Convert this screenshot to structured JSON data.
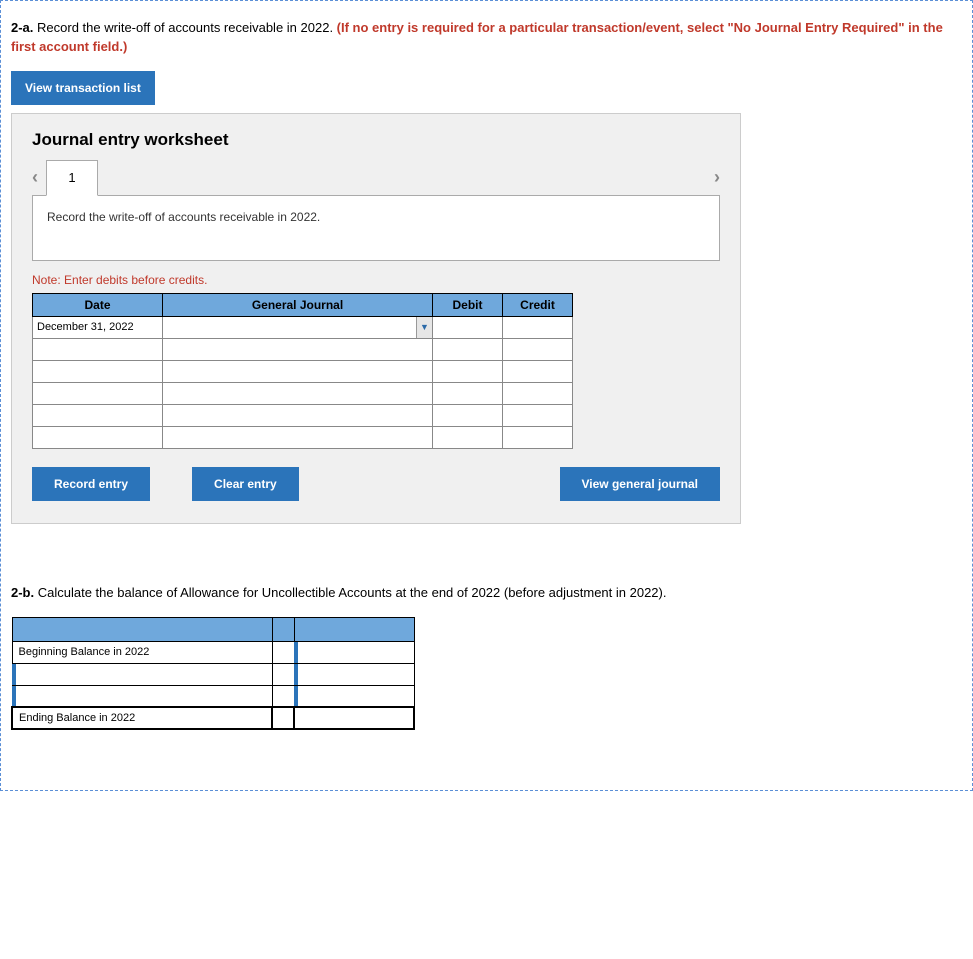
{
  "q2a": {
    "prefix": "2-a.",
    "black": " Record the write-off of accounts receivable in 2022. ",
    "red": "(If no entry is required for a particular transaction/event, select \"No Journal Entry Required\" in the first account field.)"
  },
  "buttons": {
    "view_tx_list": "View transaction list",
    "record_entry": "Record entry",
    "clear_entry": "Clear entry",
    "view_gj": "View general journal"
  },
  "worksheet": {
    "title": "Journal entry worksheet",
    "tab_label": "1",
    "prompt": "Record the write-off of accounts receivable in 2022.",
    "note": "Note: Enter debits before credits.",
    "headers": {
      "date": "Date",
      "gj": "General Journal",
      "debit": "Debit",
      "credit": "Credit"
    },
    "row1_date": "December 31, 2022"
  },
  "q2b": {
    "prefix": "2-b.",
    "text": " Calculate the balance of Allowance for Uncollectible Accounts at the end of 2022 (before adjustment in 2022)."
  },
  "balance": {
    "beginning": "Beginning Balance in 2022",
    "ending": "Ending Balance in 2022"
  },
  "colors": {
    "header_bg": "#6fa8dc",
    "button_bg": "#2b74ba",
    "red_text": "#c0392b",
    "worksheet_bg": "#f0f0f0",
    "border_dashed": "#5b8fd6"
  }
}
